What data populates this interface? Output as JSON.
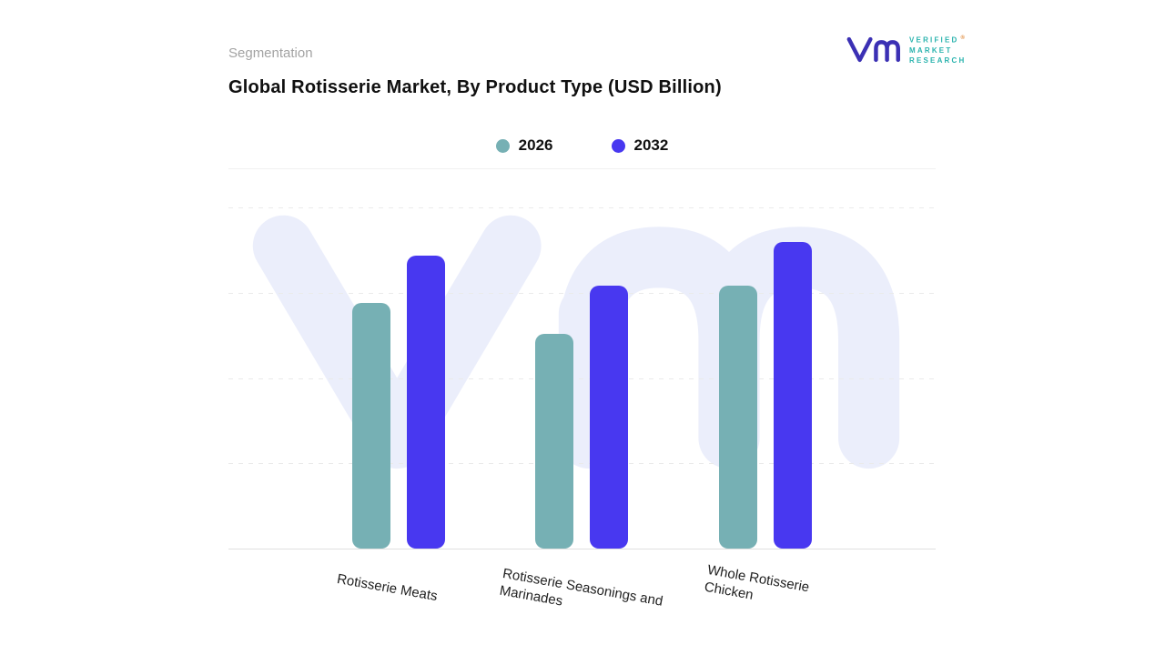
{
  "page": {
    "eyebrow": "Segmentation",
    "title": "Global Rotisserie Market, By Product Type (USD Billion)"
  },
  "brand": {
    "lines": [
      "VERIFIED",
      "MARKET",
      "RESEARCH"
    ],
    "registered": "®",
    "text_color": "#2ab3ae",
    "mark_color": "#3b30b4",
    "registered_color": "#e08a3c"
  },
  "watermark": {
    "text": "vm",
    "color": "#ebeefb"
  },
  "chart_data": {
    "type": "bar",
    "title": "Global Rotisserie Market, By Product Type (USD Billion)",
    "categories": [
      "Rotisserie Meats",
      "Rotisserie Seasonings and Marinades",
      "Whole Rotisserie Chicken"
    ],
    "series": [
      {
        "name": "2026",
        "color": "#76b0b4",
        "values": [
          72,
          63,
          77
        ]
      },
      {
        "name": "2032",
        "color": "#4838f0",
        "values": [
          86,
          77,
          90
        ]
      }
    ],
    "xlabel": "",
    "ylabel": "",
    "ylim": [
      0,
      100
    ],
    "value_scale_note": "relative heights; no numeric axis labels shown on chart",
    "legend_position": "top-center",
    "grid": "horizontal-dashed",
    "y_axis_labels_visible": false
  }
}
